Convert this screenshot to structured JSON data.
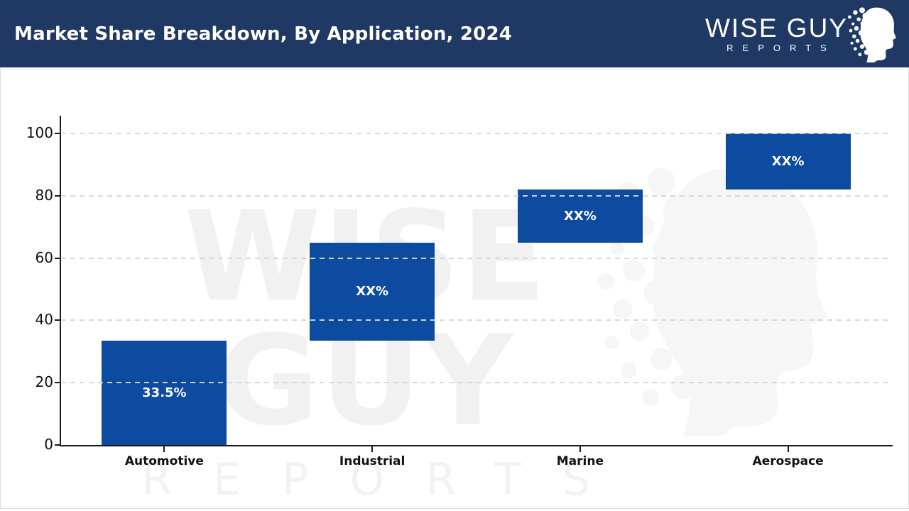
{
  "header": {
    "title": "Market Share Breakdown, By Application, 2024",
    "logo": {
      "line1": "WISE GUY",
      "line2": "REPORTS"
    },
    "bg_color": "#1f3864"
  },
  "watermark": {
    "line1": "WISE GUY",
    "line2": "REPORTS"
  },
  "chart_data": {
    "type": "bar",
    "subtype": "waterfall",
    "title": "Market Share Breakdown, By Application, 2024",
    "categories": [
      "Automotive",
      "Industrial",
      "Marine",
      "Aerospace"
    ],
    "segments": [
      {
        "category": "Automotive",
        "start": 0,
        "end": 33.5,
        "label": "33.5%"
      },
      {
        "category": "Industrial",
        "start": 33.5,
        "end": 65,
        "label": "XX%"
      },
      {
        "category": "Marine",
        "start": 65,
        "end": 82,
        "label": "XX%"
      },
      {
        "category": "Aerospace",
        "start": 82,
        "end": 100,
        "label": "XX%"
      }
    ],
    "ylim": [
      0,
      100
    ],
    "yticks": [
      0,
      20,
      40,
      60,
      80,
      100
    ],
    "bar_color": "#0d4ba0",
    "grid": "dashed horizontal",
    "legend": "none"
  }
}
